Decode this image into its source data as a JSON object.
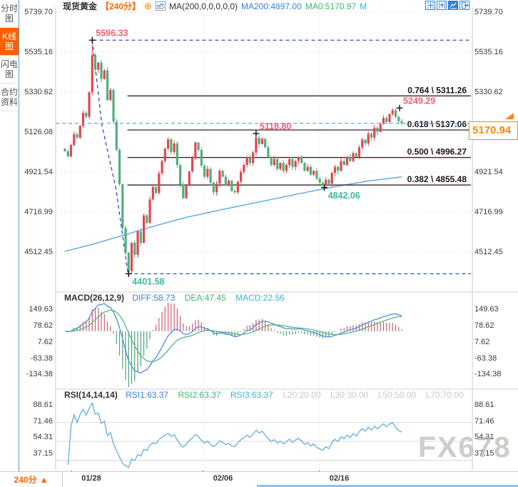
{
  "header": {
    "symbol": "现货黄金",
    "period": "【240分】",
    "add_icon": "⊕",
    "ma_settings": "MA(200,0,0,0,0,0)",
    "ma200_value": "MA200:4897.00",
    "ma0_value": "MA0:5170.97",
    "ma_extra": "M"
  },
  "sidebar": {
    "tabs": [
      {
        "label": "分时图",
        "active": false
      },
      {
        "label": "K线图",
        "active": true
      },
      {
        "label": "闪电图",
        "active": false
      },
      {
        "label": "合约资料",
        "active": false
      }
    ]
  },
  "toolbar": {
    "icons": [
      "crosshair",
      "axis-scale",
      "zoom-area",
      "exit"
    ]
  },
  "macd_header": {
    "name": "MACD(26,12,9)",
    "diff": "DIFF:58.73",
    "dea": "DEA:47.45",
    "macd": "MACD:22.56"
  },
  "rsi_header": {
    "name": "RSI(14,14,14)",
    "rsi1": "RSI1:63.37",
    "rsi2": "RSI2:63.37",
    "rsi3": "RSI3:63.37",
    "l20": "L20:20.00",
    "l30": "L30:30.00",
    "l50": "L50:50.00",
    "l70": "L70:70.00"
  },
  "price_tag": "5170.94",
  "bottom": {
    "period": "240分",
    "arrow": "▲"
  },
  "watermark": "FX678",
  "colors": {
    "accent_orange": "#ff6600",
    "candle_up": "#e2464e",
    "candle_down": "#4fae7c",
    "ma200_line": "#4da0e8",
    "fib_line": "#3a2326",
    "high_label": "#ef5f6f",
    "low_label": "#3db9a0",
    "ref_dashed": "#2b4bd0",
    "price_line": "#55aaf0",
    "diff_line": "#4a8fd6",
    "dea_line": "#57b584",
    "rsi_line": "#5aa7dc",
    "hist_up": "#c9606e",
    "hist_down": "#52a07a"
  },
  "chart_data": {
    "type": "candlestick",
    "title": "现货黄金 240分 K线图",
    "legend": [
      "MA200",
      "DIFF",
      "DEA",
      "MACD",
      "RSI1",
      "RSI2",
      "RSI3"
    ],
    "main_axis": {
      "values": [
        5739.7,
        5535.16,
        5330.62,
        5126.08,
        4921.54,
        4716.99,
        4512.45
      ]
    },
    "macd_axis": {
      "values": [
        149.63,
        78.62,
        7.62,
        -63.38,
        -134.38
      ]
    },
    "rsi_axis": {
      "values": [
        88.61,
        71.46,
        54.31,
        37.15
      ],
      "levels": [
        70,
        50,
        30
      ]
    },
    "x_axis": {
      "dates": [
        {
          "label": "01/28",
          "frac": 0.038
        },
        {
          "label": "02/06",
          "frac": 0.354
        },
        {
          "label": "02/16",
          "frac": 0.633
        }
      ]
    },
    "open0": 5042,
    "closes": [
      5028,
      5002,
      5060,
      5115,
      5098,
      5158,
      5225,
      5205,
      5330,
      5520,
      5445,
      5482,
      5398,
      5442,
      5290,
      5342,
      5180,
      5035,
      4860,
      4635,
      4508,
      4415,
      4560,
      4498,
      4618,
      4560,
      4700,
      4662,
      4782,
      4845,
      4815,
      4915,
      4978,
      5042,
      5088,
      5025,
      5068,
      4958,
      4858,
      4788,
      4852,
      4925,
      4992,
      5072,
      5035,
      4955,
      4898,
      4938,
      4868,
      4818,
      4862,
      4928,
      4898,
      4852,
      4878,
      4825,
      4818,
      4872,
      4922,
      4958,
      4998,
      4968,
      5022,
      5098,
      5065,
      5092,
      5048,
      4998,
      4958,
      4988,
      4938,
      4968,
      4928,
      4958,
      4988,
      4948,
      4978,
      4998,
      4968,
      4928,
      4948,
      4908,
      4928,
      4888,
      4868,
      4852,
      4882,
      4862,
      4918,
      4948,
      4928,
      4978,
      4958,
      4998,
      4978,
      5018,
      4998,
      5048,
      5088,
      5068,
      5118,
      5098,
      5148,
      5128,
      5168,
      5198,
      5178,
      5218,
      5238,
      5205,
      5182,
      5170.94
    ],
    "extremes": {
      "9": {
        "h": 5596.33
      },
      "21": {
        "l": 4401.58
      },
      "63": {
        "h": 5118.8
      },
      "85": {
        "l": 4842.06
      },
      "108": {
        "h": 5249.29
      }
    },
    "ma200_points": [
      [
        0,
        4516
      ],
      [
        10,
        4556
      ],
      [
        20,
        4602
      ],
      [
        30,
        4648
      ],
      [
        40,
        4690
      ],
      [
        50,
        4724
      ],
      [
        60,
        4756
      ],
      [
        70,
        4788
      ],
      [
        80,
        4820
      ],
      [
        90,
        4850
      ],
      [
        100,
        4876
      ],
      [
        111,
        4897
      ]
    ],
    "fib_levels": [
      {
        "label": "0.764 \\ 5311.26",
        "price": 5311.26
      },
      {
        "label": "0.618 \\ 5137.06",
        "price": 5137.06
      },
      {
        "label": "0.500 \\ 4996.27",
        "price": 4996.27
      },
      {
        "label": "0.382 \\ 4855.48",
        "price": 4855.48
      }
    ],
    "ref_lines": [
      {
        "price": 5596.33,
        "fromI": 9.3
      },
      {
        "price": 4401.58,
        "fromI": 20.8
      }
    ],
    "drawing_path": [
      [
        9,
        5596.33
      ],
      [
        12.2,
        5160
      ],
      [
        16.8,
        4840
      ],
      [
        20.8,
        4401.58
      ]
    ],
    "markers": [
      {
        "i": 9,
        "price": 5596.33,
        "text": "5596.33",
        "type": "high"
      },
      {
        "i": 21,
        "price": 4401.58,
        "text": "4401.58",
        "type": "low"
      },
      {
        "i": 63,
        "price": 5118.8,
        "text": "5118.80",
        "type": "high"
      },
      {
        "i": 85.5,
        "price": 4842.06,
        "text": "4842.06",
        "type": "low"
      },
      {
        "i": 110.3,
        "price": 5249.29,
        "text": "5249.29",
        "type": "high2"
      }
    ],
    "last_price": 5170.94,
    "indicators": {
      "ma200_last": 4897.0,
      "ma0_last": 5170.97,
      "macd": {
        "diff": 58.73,
        "dea": 47.45,
        "macd": 22.56
      },
      "rsi": {
        "rsi1": 63.37,
        "rsi2": 63.37,
        "rsi3": 63.37
      }
    }
  }
}
